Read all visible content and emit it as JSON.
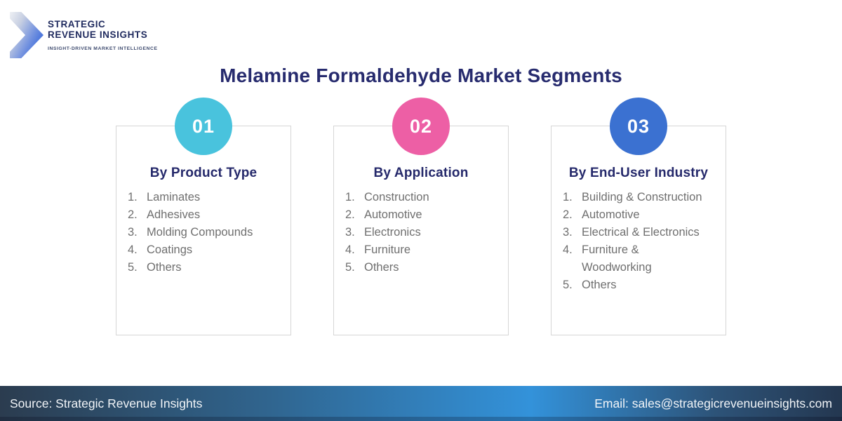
{
  "logo": {
    "line1": "STRATEGIC",
    "line2": "REVENUE INSIGHTS",
    "tagline": "INSIGHT-DRIVEN MARKET INTELLIGENCE"
  },
  "title": "Melamine Formaldehyde Market Segments",
  "cards": [
    {
      "number": "01",
      "accent_color": "#49c3dd",
      "title": "By Product Type",
      "items": [
        {
          "n": "1.",
          "text": "Laminates"
        },
        {
          "n": "2.",
          "text": "Adhesives"
        },
        {
          "n": "3.",
          "text": "Molding Compounds"
        },
        {
          "n": "4.",
          "text": "Coatings"
        },
        {
          "n": "5.",
          "text": "Others"
        }
      ]
    },
    {
      "number": "02",
      "accent_color": "#ed5fa5",
      "title": "By Application",
      "items": [
        {
          "n": "1.",
          "text": "Construction"
        },
        {
          "n": "2.",
          "text": "Automotive"
        },
        {
          "n": "3.",
          "text": "Electronics"
        },
        {
          "n": "4.",
          "text": "Furniture"
        },
        {
          "n": "5.",
          "text": "Others"
        }
      ]
    },
    {
      "number": "03",
      "accent_color": "#3b71d1",
      "title": "By End-User Industry",
      "items": [
        {
          "n": "1.",
          "text": "Building & Construction"
        },
        {
          "n": "2.",
          "text": "Automotive"
        },
        {
          "n": "3.",
          "text": "Electrical & Electronics"
        },
        {
          "n": "4.",
          "text": "Furniture &\nWoodworking"
        },
        {
          "n": "5.",
          "text": "Others"
        }
      ]
    }
  ],
  "footer": {
    "source": "Source: Strategic Revenue Insights",
    "email": "Email: sales@strategicrevenueinsights.com"
  },
  "colors": {
    "title_navy": "#272b6e",
    "list_gray": "#6f6f6f",
    "card_border": "#d6d6d6",
    "footer_dark": "#2b3c4f",
    "footer_bright_blue": "#3392da"
  }
}
